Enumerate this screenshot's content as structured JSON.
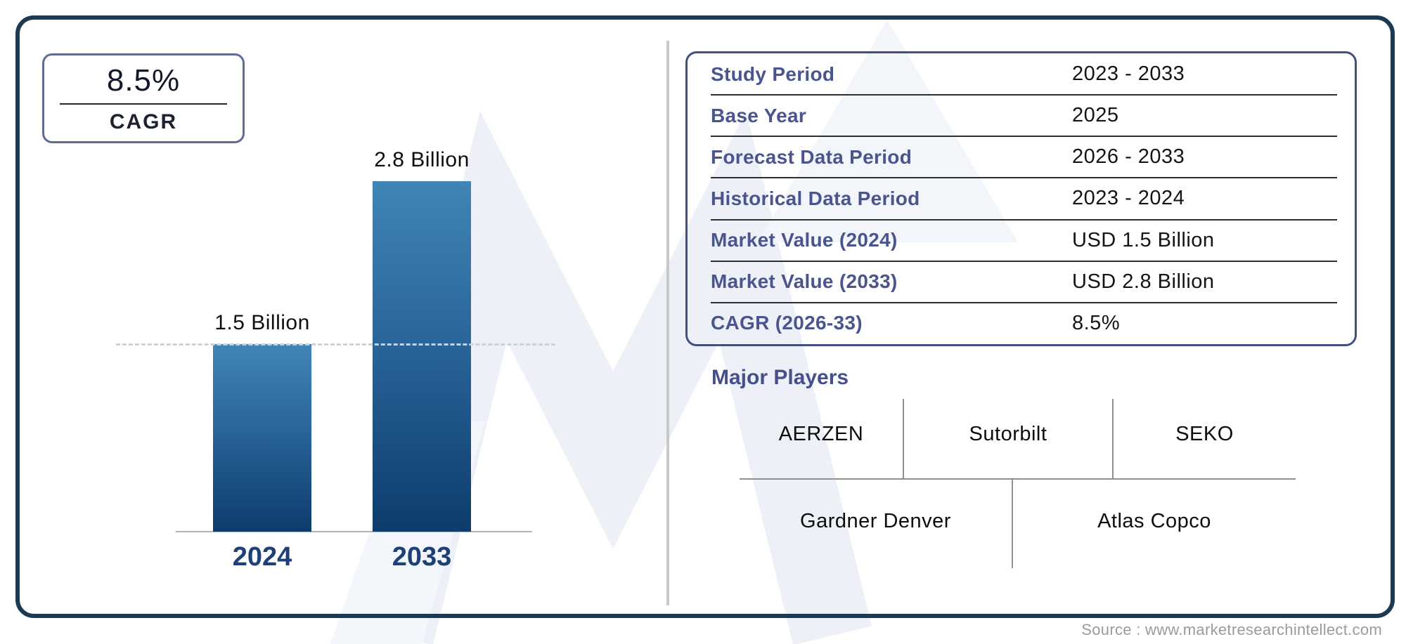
{
  "colors": {
    "frame_border": "#1b3a54",
    "accent_indigo": "#4a5590",
    "bar_gradient_top": "#3f85b5",
    "bar_gradient_bottom": "#0d3c6c",
    "year_label": "#1e3f78",
    "panel_divider": "#c9c9c9",
    "diagram_line": "#8f8f8f",
    "source_text": "#9b9b9b"
  },
  "cagr_badge": {
    "value": "8.5%",
    "label": "CAGR"
  },
  "chart_data": {
    "type": "bar",
    "title": "",
    "categories": [
      "2024",
      "2033"
    ],
    "values": [
      1.5,
      2.8
    ],
    "unit": "USD Billion",
    "bar_labels": [
      "1.5 Billion",
      "2.8 Billion"
    ],
    "ylim": [
      0,
      2.8
    ],
    "xlabel": "",
    "ylabel": "",
    "legend": "none",
    "grid": "single horizontal dashed reference line at the 2024 bar value"
  },
  "info_table": {
    "rows": [
      {
        "label": "Study Period",
        "value": "2023 - 2033"
      },
      {
        "label": "Base Year",
        "value": "2025"
      },
      {
        "label": "Forecast Data Period",
        "value": "2026 - 2033"
      },
      {
        "label": "Historical Data Period",
        "value": "2023 - 2024"
      },
      {
        "label": "Market Value (2024)",
        "value": "USD 1.5 Billion"
      },
      {
        "label": "Market Value (2033)",
        "value": "USD 2.8 Billion"
      },
      {
        "label": "CAGR (2026-33)",
        "value": "8.5%"
      }
    ]
  },
  "major_players": {
    "heading": "Major Players",
    "row1": [
      "AERZEN",
      "Sutorbilt",
      "SEKO"
    ],
    "row2": [
      "Gardner Denver",
      "Atlas Copco"
    ]
  },
  "source": "Source : www.marketresearchintellect.com"
}
